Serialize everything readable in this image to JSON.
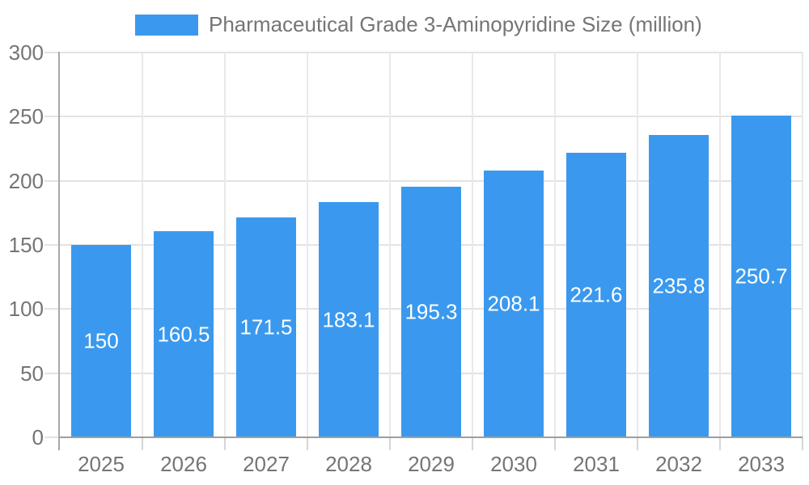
{
  "chart_data": {
    "type": "bar",
    "title": "Pharmaceutical Grade 3-Aminopyridine Size (million)",
    "series_name": "Pharmaceutical Grade 3-Aminopyridine Size (million)",
    "categories": [
      "2025",
      "2026",
      "2027",
      "2028",
      "2029",
      "2030",
      "2031",
      "2032",
      "2033"
    ],
    "values": [
      150,
      160.5,
      171.5,
      183.1,
      195.3,
      208.1,
      221.6,
      235.8,
      250.7
    ],
    "data_labels": [
      "150",
      "160.5",
      "171.5",
      "183.1",
      "195.3",
      "208.1",
      "221.6",
      "235.8",
      "250.7"
    ],
    "xlabel": "",
    "ylabel": "",
    "ylim": [
      0,
      300
    ],
    "yticks": [
      0,
      50,
      100,
      150,
      200,
      250,
      300
    ],
    "grid": true,
    "legend_position": "top"
  },
  "colors": {
    "bar": "#3A99EE",
    "bar_label_text": "#ffffff",
    "axis_label_text": "#757575",
    "grid_line_h": "#e3e3e3",
    "grid_line_v": "#e9e9e9",
    "axis_line": "#a8a8a8",
    "baseline": "#9e9e9e",
    "bottom_tick": "#d6d6d6",
    "background": "#ffffff"
  }
}
